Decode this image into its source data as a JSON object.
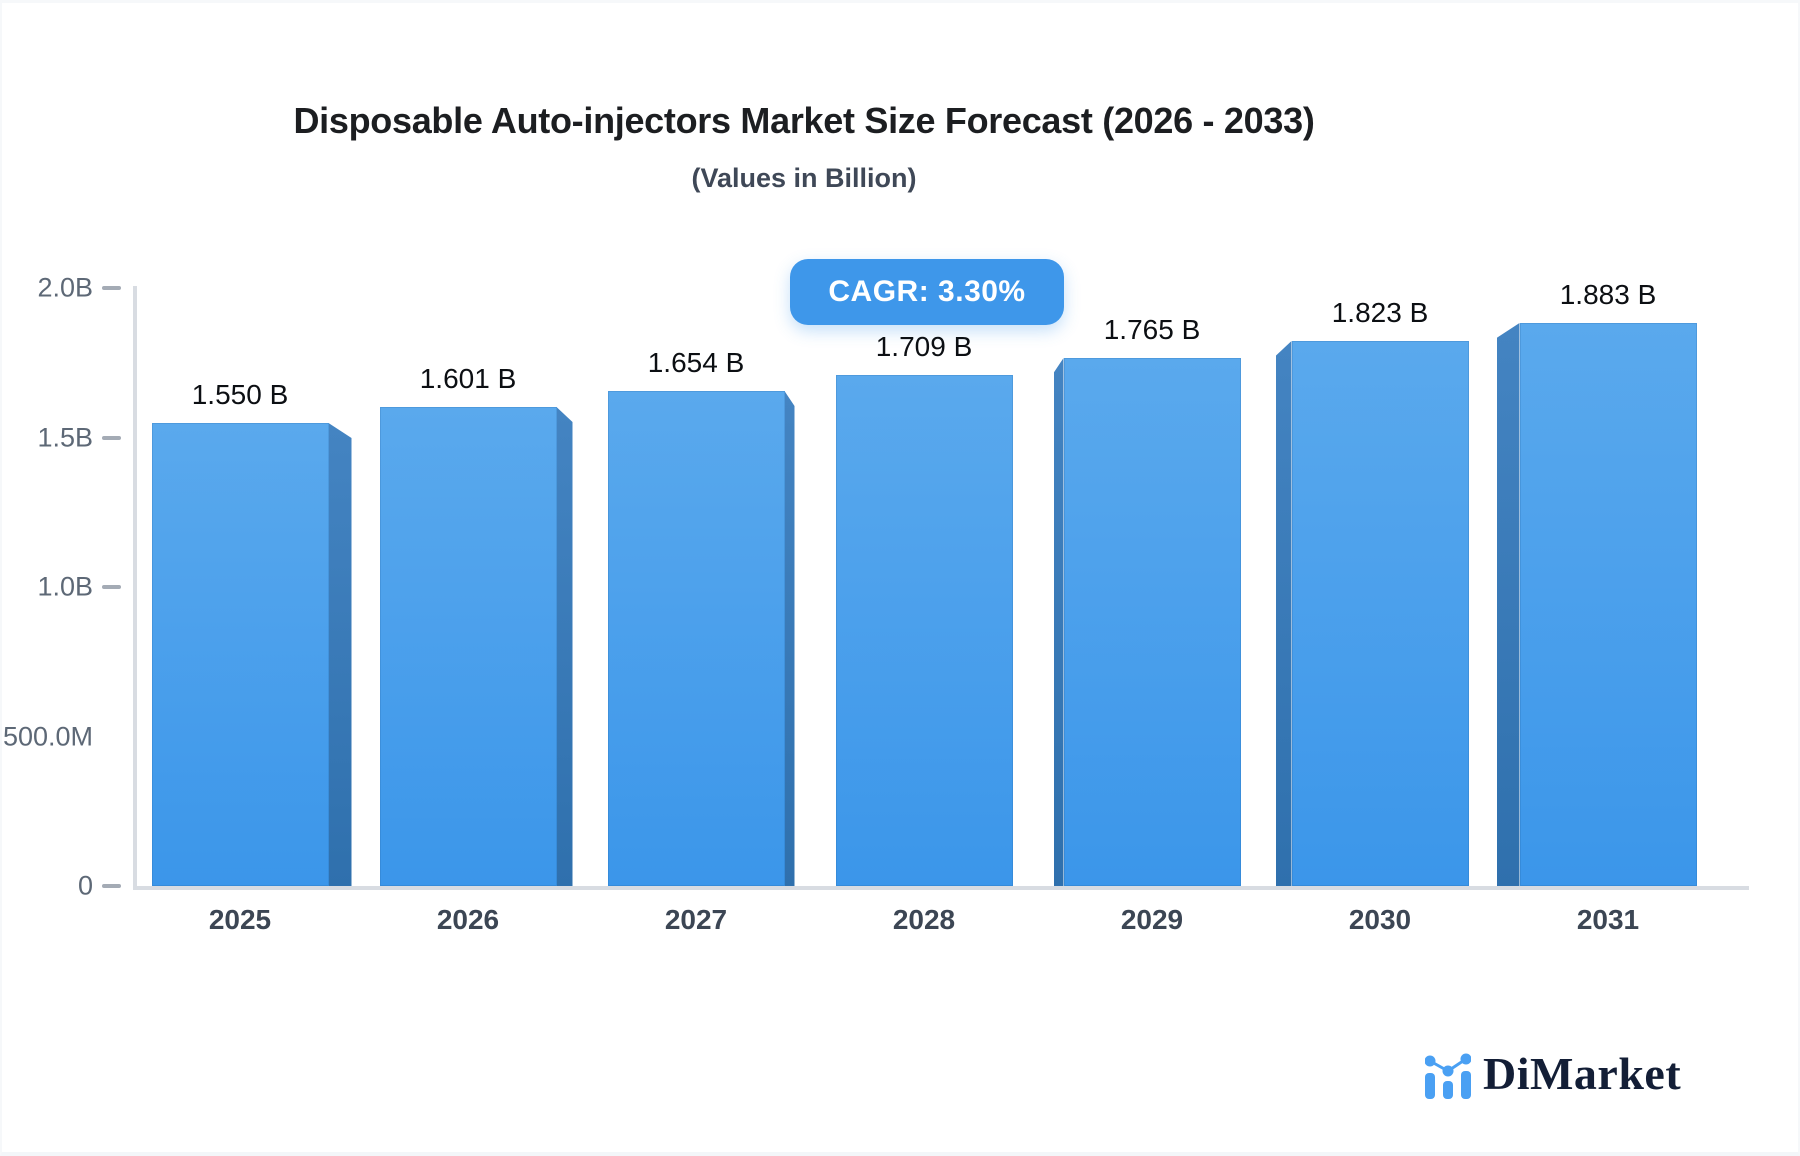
{
  "header": {
    "title": "Disposable Auto-injectors Market Size Forecast (2026 - 2033)",
    "subtitle": "(Values in Billion)"
  },
  "cagr_badge": {
    "label": "CAGR: 3.30%",
    "color": "#3e97ea"
  },
  "chart_data": {
    "type": "bar",
    "title": "Disposable Auto-injectors Market Size Forecast (2026 - 2033)",
    "subtitle": "(Values in Billion)",
    "categories": [
      "2025",
      "2026",
      "2027",
      "2028",
      "2029",
      "2030",
      "2031"
    ],
    "values": [
      1.55,
      1.601,
      1.654,
      1.709,
      1.765,
      1.823,
      1.883
    ],
    "value_labels": [
      "1.550 B",
      "1.601 B",
      "1.654 B",
      "1.709 B",
      "1.765 B",
      "1.823 B",
      "1.883 B"
    ],
    "unit": "Billion",
    "ylim": [
      0,
      2.0
    ],
    "ytick_labels": [
      "2.0B",
      "1.5B",
      "1.0B",
      "500.0M",
      "0"
    ],
    "grid": false,
    "legend": false,
    "cagr_percent": "3.30%",
    "colors": {
      "bar_top": "#5aa9ed",
      "bar_bottom": "#3b96ea",
      "bar_side": "#3273b2",
      "axis": "#d8dce2",
      "tick_text": "#5d6876",
      "category_text": "#3c4654",
      "value_text": "#0c0f13",
      "badge": "#3e97ea"
    }
  },
  "footer": {
    "logo_text": "DiMarket",
    "logo_icon": "bar-chart-logo-icon"
  }
}
